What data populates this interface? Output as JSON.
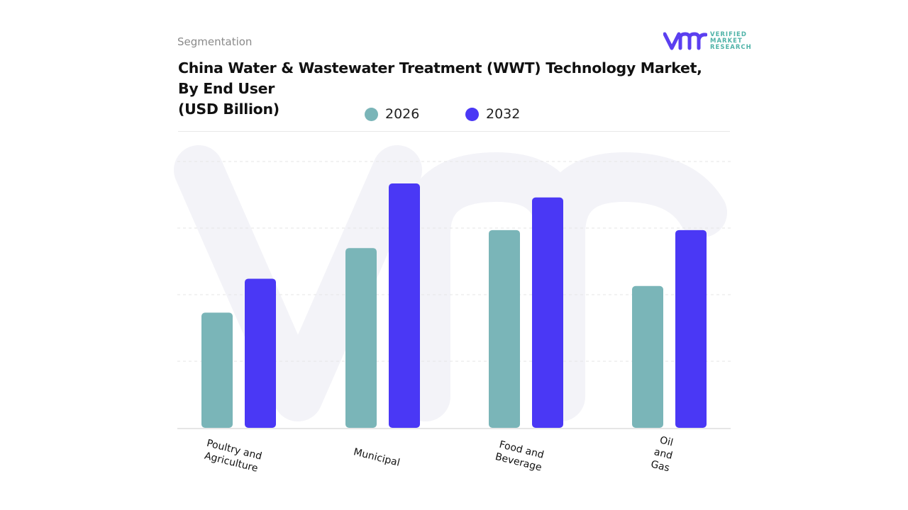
{
  "header": {
    "segment_label": "Segmentation",
    "title_lines": [
      "China Water & Wastewater Treatment (WWT) Technology Market,",
      "By End User",
      "(USD Billion)"
    ]
  },
  "logo": {
    "mark": "vmr",
    "text_lines": [
      "VERIFIED",
      "MARKET",
      "RESEARCH"
    ],
    "color_mark": "#5b3ff0",
    "color_text": "#4fb3a8"
  },
  "chart_data": {
    "type": "bar",
    "title": "China Water & Wastewater Treatment (WWT) Technology Market, By End User (USD Billion)",
    "categories": [
      "Poultry and Agriculture",
      "Municipal",
      "Food and Beverage",
      "Oil and Gas"
    ],
    "category_label_lines": [
      [
        "Poultry and",
        "Agriculture"
      ],
      [
        "Municipal"
      ],
      [
        "Food and",
        "Beverage"
      ],
      [
        "Oil",
        "and",
        "Gas"
      ]
    ],
    "series": [
      {
        "name": "2026",
        "color": "#7ab5b8",
        "values": [
          1.73,
          2.7,
          2.97,
          2.13
        ]
      },
      {
        "name": "2032",
        "color": "#4a38f5",
        "values": [
          2.24,
          3.67,
          3.46,
          2.97
        ]
      }
    ],
    "ylim": [
      0,
      4
    ],
    "y_ticks_shown": false,
    "grid": "horizontal dashed",
    "legend": "top-center"
  }
}
